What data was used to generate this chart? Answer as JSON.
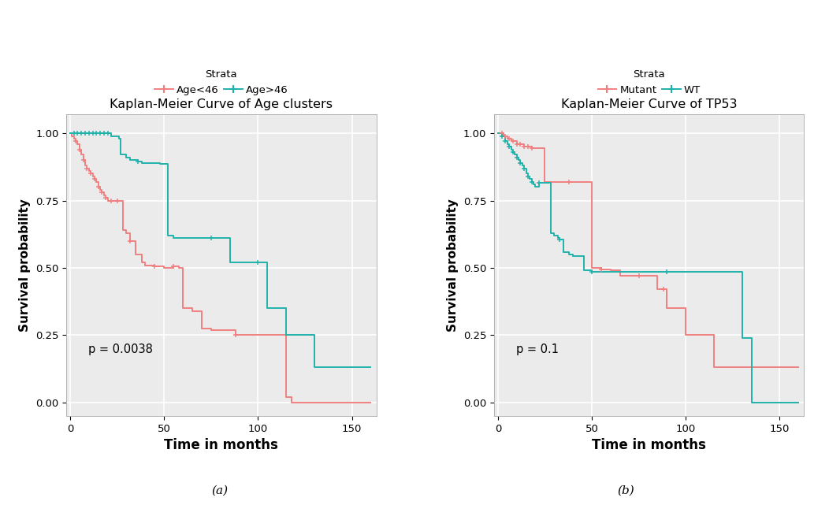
{
  "plot_a": {
    "title": "Kaplan-Meier Curve of Age clusters",
    "legend_title": "Strata",
    "label1": "Age<46",
    "label2": "Age>46",
    "color1": "#F08080",
    "color2": "#20B2AA",
    "pvalue": "p = 0.0038",
    "curve1_steps": [
      [
        0,
        1.0
      ],
      [
        1,
        0.99
      ],
      [
        2,
        0.98
      ],
      [
        3,
        0.97
      ],
      [
        4,
        0.96
      ],
      [
        5,
        0.94
      ],
      [
        6,
        0.92
      ],
      [
        7,
        0.9
      ],
      [
        8,
        0.88
      ],
      [
        9,
        0.87
      ],
      [
        10,
        0.86
      ],
      [
        11,
        0.85
      ],
      [
        12,
        0.84
      ],
      [
        13,
        0.83
      ],
      [
        14,
        0.82
      ],
      [
        15,
        0.8
      ],
      [
        16,
        0.79
      ],
      [
        17,
        0.78
      ],
      [
        18,
        0.77
      ],
      [
        19,
        0.76
      ],
      [
        20,
        0.75
      ],
      [
        25,
        0.75
      ],
      [
        28,
        0.64
      ],
      [
        30,
        0.63
      ],
      [
        32,
        0.6
      ],
      [
        35,
        0.55
      ],
      [
        38,
        0.52
      ],
      [
        40,
        0.51
      ],
      [
        45,
        0.505
      ],
      [
        50,
        0.5
      ],
      [
        55,
        0.505
      ],
      [
        58,
        0.5
      ],
      [
        60,
        0.35
      ],
      [
        65,
        0.34
      ],
      [
        70,
        0.275
      ],
      [
        75,
        0.27
      ],
      [
        80,
        0.27
      ],
      [
        85,
        0.27
      ],
      [
        88,
        0.25
      ],
      [
        90,
        0.25
      ],
      [
        100,
        0.25
      ],
      [
        115,
        0.02
      ],
      [
        118,
        0.0
      ],
      [
        160,
        0.0
      ]
    ],
    "curve1_censors": [
      [
        3,
        0.97
      ],
      [
        5,
        0.94
      ],
      [
        7,
        0.9
      ],
      [
        9,
        0.87
      ],
      [
        11,
        0.85
      ],
      [
        13,
        0.83
      ],
      [
        15,
        0.8
      ],
      [
        17,
        0.78
      ],
      [
        19,
        0.76
      ],
      [
        22,
        0.75
      ],
      [
        25,
        0.75
      ],
      [
        32,
        0.6
      ],
      [
        45,
        0.505
      ],
      [
        55,
        0.505
      ],
      [
        88,
        0.25
      ]
    ],
    "curve2_steps": [
      [
        0,
        1.0
      ],
      [
        2,
        1.0
      ],
      [
        4,
        1.0
      ],
      [
        6,
        1.0
      ],
      [
        8,
        1.0
      ],
      [
        10,
        1.0
      ],
      [
        12,
        1.0
      ],
      [
        14,
        1.0
      ],
      [
        16,
        1.0
      ],
      [
        18,
        1.0
      ],
      [
        20,
        1.0
      ],
      [
        22,
        0.99
      ],
      [
        24,
        0.99
      ],
      [
        26,
        0.98
      ],
      [
        27,
        0.92
      ],
      [
        30,
        0.91
      ],
      [
        32,
        0.9
      ],
      [
        34,
        0.9
      ],
      [
        36,
        0.895
      ],
      [
        38,
        0.89
      ],
      [
        40,
        0.89
      ],
      [
        42,
        0.89
      ],
      [
        44,
        0.89
      ],
      [
        46,
        0.89
      ],
      [
        48,
        0.885
      ],
      [
        50,
        0.885
      ],
      [
        52,
        0.62
      ],
      [
        55,
        0.61
      ],
      [
        60,
        0.61
      ],
      [
        65,
        0.61
      ],
      [
        70,
        0.61
      ],
      [
        75,
        0.61
      ],
      [
        80,
        0.61
      ],
      [
        85,
        0.52
      ],
      [
        90,
        0.52
      ],
      [
        95,
        0.52
      ],
      [
        100,
        0.52
      ],
      [
        105,
        0.35
      ],
      [
        108,
        0.35
      ],
      [
        110,
        0.35
      ],
      [
        115,
        0.25
      ],
      [
        120,
        0.25
      ],
      [
        125,
        0.25
      ],
      [
        130,
        0.13
      ],
      [
        140,
        0.13
      ],
      [
        150,
        0.13
      ],
      [
        160,
        0.13
      ]
    ],
    "curve2_censors": [
      [
        2,
        1.0
      ],
      [
        4,
        1.0
      ],
      [
        6,
        1.0
      ],
      [
        8,
        1.0
      ],
      [
        10,
        1.0
      ],
      [
        12,
        1.0
      ],
      [
        14,
        1.0
      ],
      [
        16,
        1.0
      ],
      [
        18,
        1.0
      ],
      [
        20,
        1.0
      ],
      [
        36,
        0.895
      ],
      [
        75,
        0.61
      ],
      [
        100,
        0.52
      ]
    ]
  },
  "plot_b": {
    "title": "Kaplan-Meier Curve of TP53",
    "legend_title": "Strata",
    "label1": "Mutant",
    "label2": "WT",
    "color1": "#F08080",
    "color2": "#20B2AA",
    "pvalue": "p = 0.1",
    "curve1_steps": [
      [
        0,
        1.0
      ],
      [
        1,
        1.0
      ],
      [
        2,
        1.0
      ],
      [
        3,
        0.99
      ],
      [
        4,
        0.99
      ],
      [
        5,
        0.98
      ],
      [
        6,
        0.98
      ],
      [
        7,
        0.97
      ],
      [
        8,
        0.97
      ],
      [
        9,
        0.97
      ],
      [
        10,
        0.96
      ],
      [
        11,
        0.96
      ],
      [
        12,
        0.96
      ],
      [
        14,
        0.95
      ],
      [
        15,
        0.95
      ],
      [
        16,
        0.95
      ],
      [
        18,
        0.945
      ],
      [
        20,
        0.945
      ],
      [
        22,
        0.945
      ],
      [
        25,
        0.82
      ],
      [
        28,
        0.82
      ],
      [
        30,
        0.82
      ],
      [
        32,
        0.82
      ],
      [
        35,
        0.82
      ],
      [
        38,
        0.82
      ],
      [
        40,
        0.82
      ],
      [
        45,
        0.82
      ],
      [
        50,
        0.5
      ],
      [
        52,
        0.5
      ],
      [
        55,
        0.495
      ],
      [
        58,
        0.495
      ],
      [
        60,
        0.49
      ],
      [
        65,
        0.47
      ],
      [
        70,
        0.47
      ],
      [
        75,
        0.47
      ],
      [
        80,
        0.47
      ],
      [
        85,
        0.42
      ],
      [
        88,
        0.42
      ],
      [
        90,
        0.35
      ],
      [
        95,
        0.35
      ],
      [
        100,
        0.25
      ],
      [
        105,
        0.25
      ],
      [
        110,
        0.25
      ],
      [
        115,
        0.13
      ],
      [
        120,
        0.13
      ],
      [
        125,
        0.13
      ],
      [
        130,
        0.13
      ],
      [
        135,
        0.13
      ],
      [
        140,
        0.13
      ],
      [
        145,
        0.13
      ],
      [
        150,
        0.13
      ],
      [
        155,
        0.13
      ],
      [
        160,
        0.13
      ]
    ],
    "curve1_censors": [
      [
        2,
        1.0
      ],
      [
        4,
        0.99
      ],
      [
        6,
        0.98
      ],
      [
        8,
        0.97
      ],
      [
        10,
        0.96
      ],
      [
        12,
        0.96
      ],
      [
        14,
        0.95
      ],
      [
        16,
        0.95
      ],
      [
        18,
        0.945
      ],
      [
        38,
        0.82
      ],
      [
        55,
        0.495
      ],
      [
        75,
        0.47
      ],
      [
        88,
        0.42
      ]
    ],
    "curve2_steps": [
      [
        0,
        1.0
      ],
      [
        2,
        0.99
      ],
      [
        4,
        0.97
      ],
      [
        5,
        0.96
      ],
      [
        6,
        0.95
      ],
      [
        7,
        0.94
      ],
      [
        8,
        0.93
      ],
      [
        9,
        0.92
      ],
      [
        10,
        0.91
      ],
      [
        11,
        0.9
      ],
      [
        12,
        0.89
      ],
      [
        13,
        0.88
      ],
      [
        14,
        0.87
      ],
      [
        15,
        0.85
      ],
      [
        16,
        0.84
      ],
      [
        17,
        0.83
      ],
      [
        18,
        0.82
      ],
      [
        19,
        0.81
      ],
      [
        20,
        0.8
      ],
      [
        22,
        0.815
      ],
      [
        24,
        0.815
      ],
      [
        26,
        0.815
      ],
      [
        28,
        0.63
      ],
      [
        30,
        0.62
      ],
      [
        32,
        0.61
      ],
      [
        33,
        0.605
      ],
      [
        35,
        0.56
      ],
      [
        38,
        0.55
      ],
      [
        40,
        0.545
      ],
      [
        42,
        0.545
      ],
      [
        44,
        0.545
      ],
      [
        46,
        0.49
      ],
      [
        48,
        0.49
      ],
      [
        50,
        0.485
      ],
      [
        52,
        0.485
      ],
      [
        55,
        0.485
      ],
      [
        58,
        0.485
      ],
      [
        60,
        0.485
      ],
      [
        65,
        0.485
      ],
      [
        70,
        0.485
      ],
      [
        75,
        0.485
      ],
      [
        80,
        0.485
      ],
      [
        85,
        0.485
      ],
      [
        90,
        0.485
      ],
      [
        95,
        0.485
      ],
      [
        100,
        0.485
      ],
      [
        105,
        0.485
      ],
      [
        110,
        0.485
      ],
      [
        115,
        0.485
      ],
      [
        120,
        0.485
      ],
      [
        125,
        0.485
      ],
      [
        130,
        0.24
      ],
      [
        135,
        0.0
      ],
      [
        140,
        0.0
      ],
      [
        150,
        0.0
      ],
      [
        160,
        0.0
      ]
    ],
    "curve2_censors": [
      [
        2,
        0.99
      ],
      [
        4,
        0.97
      ],
      [
        6,
        0.95
      ],
      [
        8,
        0.93
      ],
      [
        10,
        0.91
      ],
      [
        12,
        0.89
      ],
      [
        14,
        0.87
      ],
      [
        16,
        0.84
      ],
      [
        18,
        0.82
      ],
      [
        22,
        0.815
      ],
      [
        33,
        0.605
      ],
      [
        50,
        0.485
      ],
      [
        90,
        0.485
      ]
    ]
  },
  "xlabel": "Time in months",
  "ylabel": "Survival probability",
  "xlim": [
    -2,
    163
  ],
  "ylim": [
    -0.05,
    1.07
  ],
  "xticks": [
    0,
    50,
    100,
    150
  ],
  "yticks": [
    0.0,
    0.25,
    0.5,
    0.75,
    1.0
  ],
  "ytick_labels": [
    "0.00",
    "0.25",
    "0.50",
    "0.75",
    "1.00"
  ],
  "bg_color": "#EBEBEB",
  "grid_color": "white",
  "fig_label_a": "(a)",
  "fig_label_b": "(b)",
  "title_fontsize": 11.5,
  "label_fontsize": 11,
  "tick_fontsize": 9.5,
  "legend_fontsize": 9.5,
  "pvalue_fontsize": 10.5,
  "line_width": 1.4
}
